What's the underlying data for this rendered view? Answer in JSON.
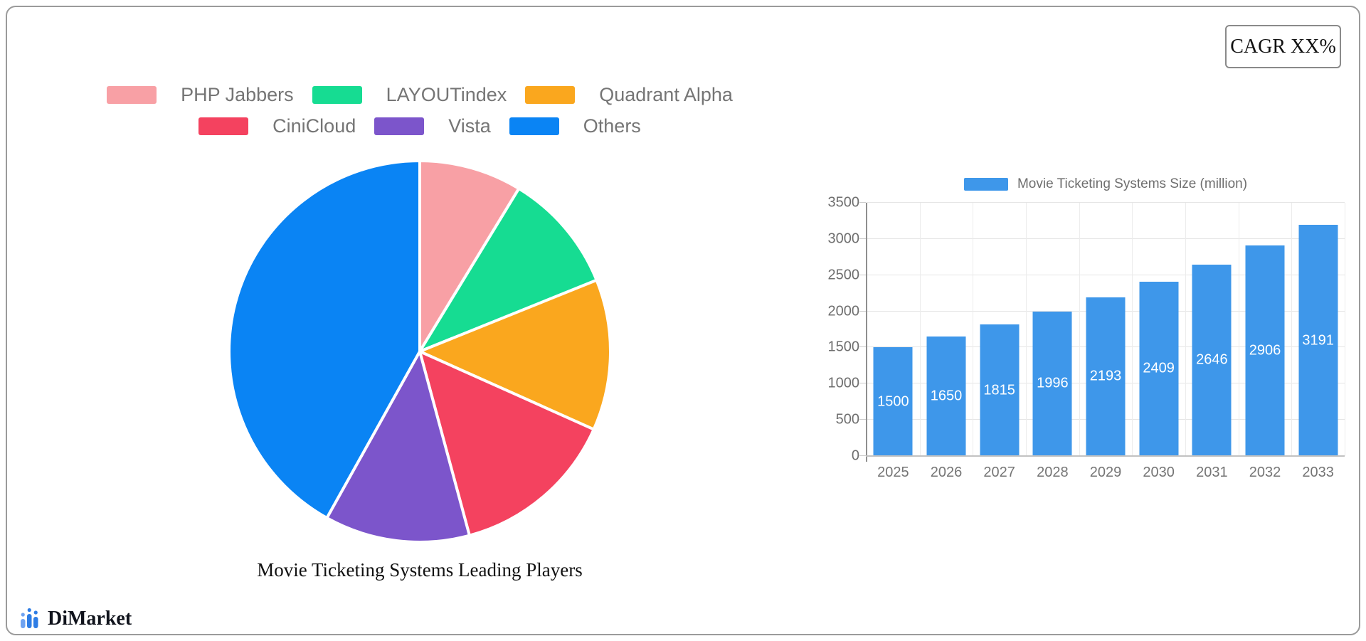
{
  "header": {
    "cagr_label": "CAGR XX%"
  },
  "brand": {
    "name": "DiMarket",
    "icon": "mini-bar-chart-icon",
    "icon_colors": [
      "#6FA3F1",
      "#2E7DE5",
      "#2E7DE5"
    ]
  },
  "chart_data": [
    {
      "type": "pie",
      "title": "Movie Ticketing Systems Leading Players",
      "labels": [
        "PHP Jabbers",
        "LAYOUTindex",
        "Quadrant Alpha",
        "CiniCloud",
        "Vista",
        "Others"
      ],
      "values": [
        8.7,
        10.2,
        12.8,
        14.1,
        12.3,
        41.9
      ],
      "unit": "percent share",
      "colors": [
        "#F8A0A5",
        "#16DC92",
        "#FAA71E",
        "#F4425F",
        "#7C55CB",
        "#0A84F4"
      ],
      "legend_rows": [
        [
          0,
          1,
          2
        ],
        [
          3,
          4,
          5
        ]
      ],
      "legend_position": "top",
      "start_angle_deg": 0,
      "direction": "clockwise"
    },
    {
      "type": "bar",
      "title": "Movie Ticketing Systems Size (million)",
      "categories": [
        "2025",
        "2026",
        "2027",
        "2028",
        "2029",
        "2030",
        "2031",
        "2032",
        "2033"
      ],
      "values": [
        1500,
        1650,
        1815,
        1996,
        2193,
        2409,
        2646,
        2906,
        3191
      ],
      "ylim": [
        0,
        3500
      ],
      "ytick_step": 500,
      "yticks": [
        0,
        500,
        1000,
        1500,
        2000,
        2500,
        3000,
        3500
      ],
      "bar_color": "#3E97EA",
      "value_label_color": "#FFFFFF",
      "grid": true,
      "legend_position": "top"
    }
  ]
}
